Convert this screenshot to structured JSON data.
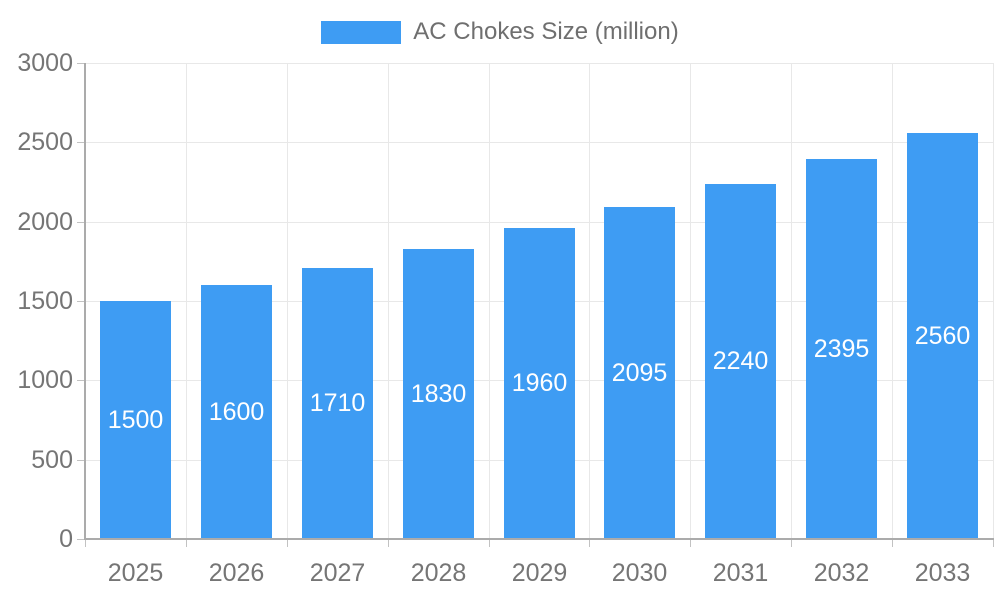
{
  "legend": {
    "label": "AC Chokes Size (million)"
  },
  "chart_data": {
    "type": "bar",
    "title": "AC Chokes Size (million)",
    "categories": [
      "2025",
      "2026",
      "2027",
      "2028",
      "2029",
      "2030",
      "2031",
      "2032",
      "2033"
    ],
    "values": [
      1500,
      1600,
      1710,
      1830,
      1960,
      2095,
      2240,
      2395,
      2560
    ],
    "xlabel": "",
    "ylabel": "",
    "ylim": [
      0,
      3000
    ],
    "yticks": [
      0,
      500,
      1000,
      1500,
      2000,
      2500,
      3000
    ],
    "ytick_interval": 500,
    "grid": true,
    "legend_position": "top",
    "bar_color": "#3e9cf3",
    "bar_label_color": "#ffffff"
  }
}
